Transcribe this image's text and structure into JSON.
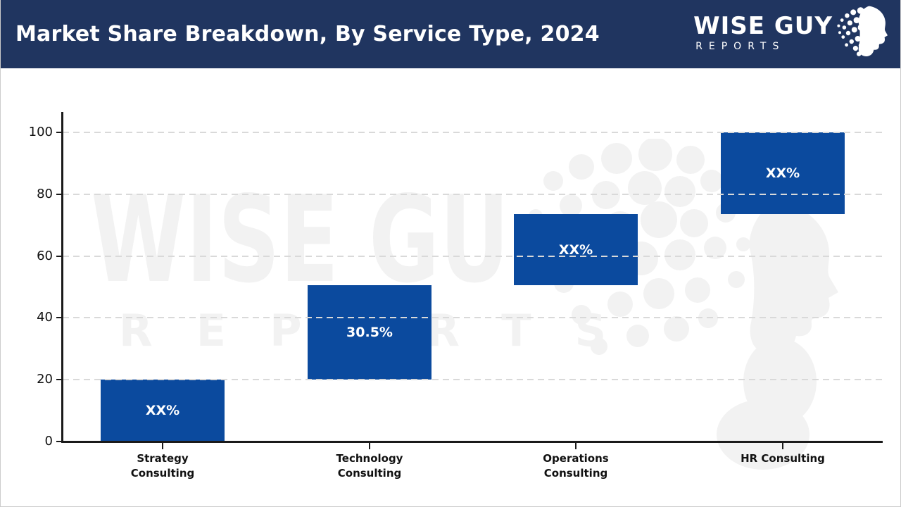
{
  "header": {
    "title": "Market Share Breakdown, By Service Type, 2024",
    "logo_line1": "WISE GUY",
    "logo_line2": "REPORTS"
  },
  "watermark": {
    "line1": "WISE GU",
    "line2": "REPORTS"
  },
  "chart_data": {
    "type": "bar",
    "subtype": "floating-waterfall",
    "title": "Market Share Breakdown, By Service Type, 2024",
    "categories": [
      "Strategy\nConsulting",
      "Technology\nConsulting",
      "Operations\nConsulting",
      "HR Consulting"
    ],
    "bars": [
      {
        "category": "Strategy Consulting",
        "label": "XX%",
        "start": 0,
        "end": 20
      },
      {
        "category": "Technology Consulting",
        "label": "30.5%",
        "start": 20,
        "end": 50.5
      },
      {
        "category": "Operations Consulting",
        "label": "XX%",
        "start": 50.5,
        "end": 73.5
      },
      {
        "category": "HR Consulting",
        "label": "XX%",
        "start": 73.5,
        "end": 100
      }
    ],
    "xlabel": "",
    "ylabel": "",
    "yticks": [
      0,
      20,
      40,
      60,
      80,
      100
    ],
    "ylim": [
      0,
      107
    ],
    "grid": {
      "horizontal": true,
      "style": "dashed",
      "color": "#d9d9d9"
    },
    "legend": "none",
    "bar_color": "#0b4a9e",
    "bar_label_color": "#ffffff"
  },
  "colors": {
    "header_bg": "#203560",
    "bar": "#0b4a9e",
    "grid": "#d9d9d9",
    "axis": "#1a1a1a",
    "watermark": "#f2f2f2",
    "frame_border": "#cccccc"
  }
}
